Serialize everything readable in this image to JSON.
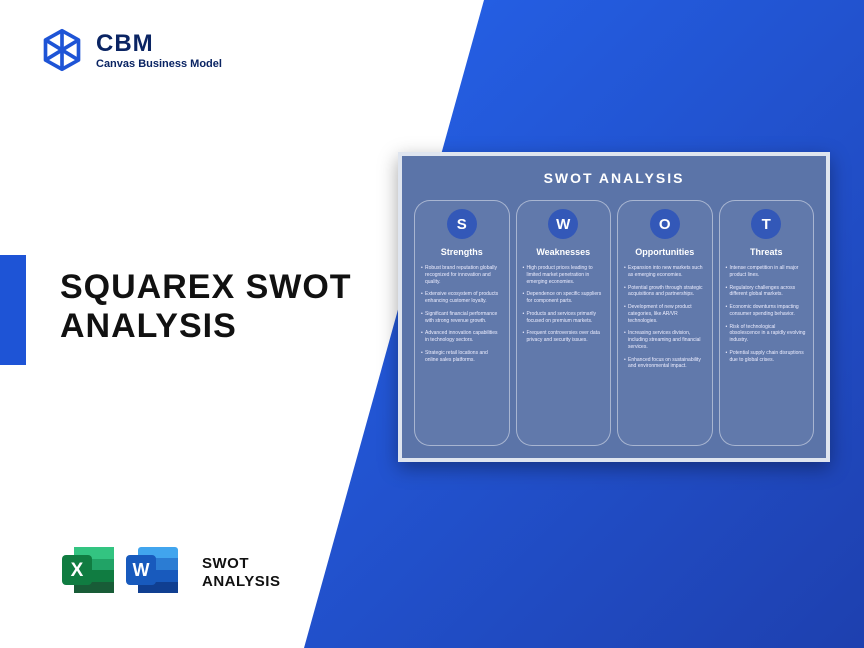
{
  "brand": {
    "name": "CBM",
    "subtitle": "Canvas Business Model"
  },
  "colors": {
    "brand_text": "#0a2463",
    "accent_bar": "#1e54d6",
    "diagonal_gradient_from": "#2563eb",
    "diagonal_gradient_to": "#1e40af",
    "card_bg": "#5b74a8",
    "card_border": "#dfe5ef",
    "letter_circle": "#3358b8",
    "excel_green_dark": "#107c41",
    "excel_green_light": "#21a366",
    "word_blue_dark": "#185abd",
    "word_blue_light": "#2b7cd3"
  },
  "title_line1": "SQUAREX SWOT",
  "title_line2": "ANALYSIS",
  "badge_label_line1": "SWOT",
  "badge_label_line2": "ANALYSIS",
  "swot": {
    "heading": "SWOT ANALYSIS",
    "columns": [
      {
        "letter": "S",
        "label": "Strengths",
        "items": [
          "Robust brand reputation globally recognized for innovation and quality.",
          "Extensive ecosystem of products enhancing customer loyalty.",
          "Significant financial performance with strong revenue growth.",
          "Advanced innovation capabilities in technology sectors.",
          "Strategic retail locations and online sales platforms."
        ]
      },
      {
        "letter": "W",
        "label": "Weaknesses",
        "items": [
          "High product prices leading to limited market penetration in emerging economies.",
          "Dependence on specific suppliers for component parts.",
          "Products and services primarily focused on premium markets.",
          "Frequent controversies over data privacy and security issues."
        ]
      },
      {
        "letter": "O",
        "label": "Opportunities",
        "items": [
          "Expansion into new markets such as emerging economies.",
          "Potential growth through strategic acquisitions and partnerships.",
          "Development of new product categories, like AR/VR technologies.",
          "Increasing services division, including streaming and financial services.",
          "Enhanced focus on sustainability and environmental impact."
        ]
      },
      {
        "letter": "T",
        "label": "Threats",
        "items": [
          "Intense competition in all major product lines.",
          "Regulatory challenges across different global markets.",
          "Economic downturns impacting consumer spending behavior.",
          "Risk of technological obsolescence in a rapidly evolving industry.",
          "Potential supply chain disruptions due to global crises."
        ]
      }
    ]
  }
}
